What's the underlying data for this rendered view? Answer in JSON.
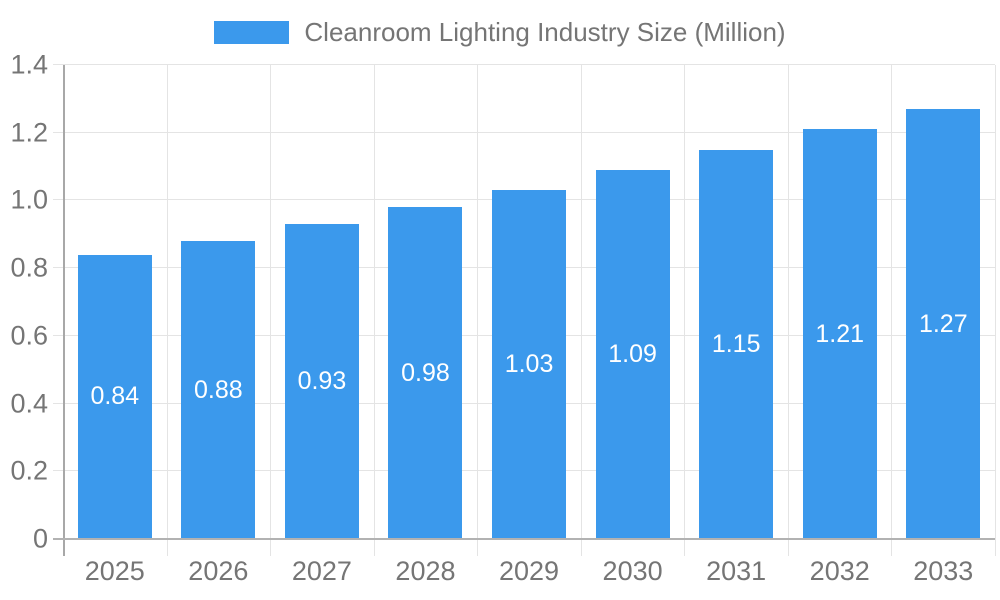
{
  "legend": {
    "label": "Cleanroom Lighting Industry Size (Million)"
  },
  "colors": {
    "bar": "#3b99ec",
    "grid": "#e4e4e4",
    "axis_line": "#a8a8a8",
    "axis_text": "#757575",
    "bar_label_text": "#ffffff",
    "background": "#ffffff"
  },
  "chart_data": {
    "type": "bar",
    "title": "Cleanroom Lighting Industry Size (Million)",
    "categories": [
      "2025",
      "2026",
      "2027",
      "2028",
      "2029",
      "2030",
      "2031",
      "2032",
      "2033"
    ],
    "values": [
      0.84,
      0.88,
      0.93,
      0.98,
      1.03,
      1.09,
      1.15,
      1.21,
      1.27
    ],
    "bar_labels": [
      "0.84",
      "0.88",
      "0.93",
      "0.98",
      "1.03",
      "1.09",
      "1.15",
      "1.21",
      "1.27"
    ],
    "xlabel": "",
    "ylabel": "",
    "ylim": [
      0,
      1.4
    ],
    "yticks": [
      "0",
      "0.2",
      "0.4",
      "0.6",
      "0.8",
      "1.0",
      "1.2",
      "1.4"
    ],
    "grid": true,
    "legend_position": "top"
  }
}
